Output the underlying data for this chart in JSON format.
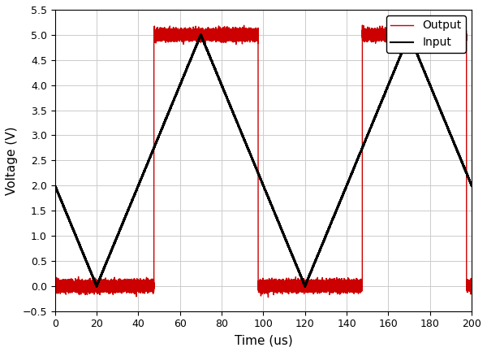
{
  "title": "",
  "xlabel": "Time (us)",
  "ylabel": "Voltage (V)",
  "xlim": [
    0,
    200
  ],
  "ylim": [
    -0.5,
    5.5
  ],
  "xticks": [
    0,
    20,
    40,
    60,
    80,
    100,
    120,
    140,
    160,
    180,
    200
  ],
  "yticks": [
    -0.5,
    0.0,
    0.5,
    1.0,
    1.5,
    2.0,
    2.5,
    3.0,
    3.5,
    4.0,
    4.5,
    5.0,
    5.5
  ],
  "threshold": 2.5,
  "vhigh": 5.0,
  "vlow": 0.0,
  "prop_delay": 2.5,
  "noise_amp_out": 0.05,
  "noise_amp_in": 0.008,
  "input_color": "#000000",
  "output_color": "#cc0000",
  "legend_labels": [
    "Input",
    "Output"
  ],
  "figsize": [
    6.0,
    4.33
  ],
  "dpi": 100,
  "background_color": "#ffffff",
  "grid_color": "#cccccc",
  "triangle_period": 100.0,
  "triangle_min": 0.0,
  "triangle_max": 5.0,
  "trough_time": 20.0,
  "t0_value": 2.2
}
